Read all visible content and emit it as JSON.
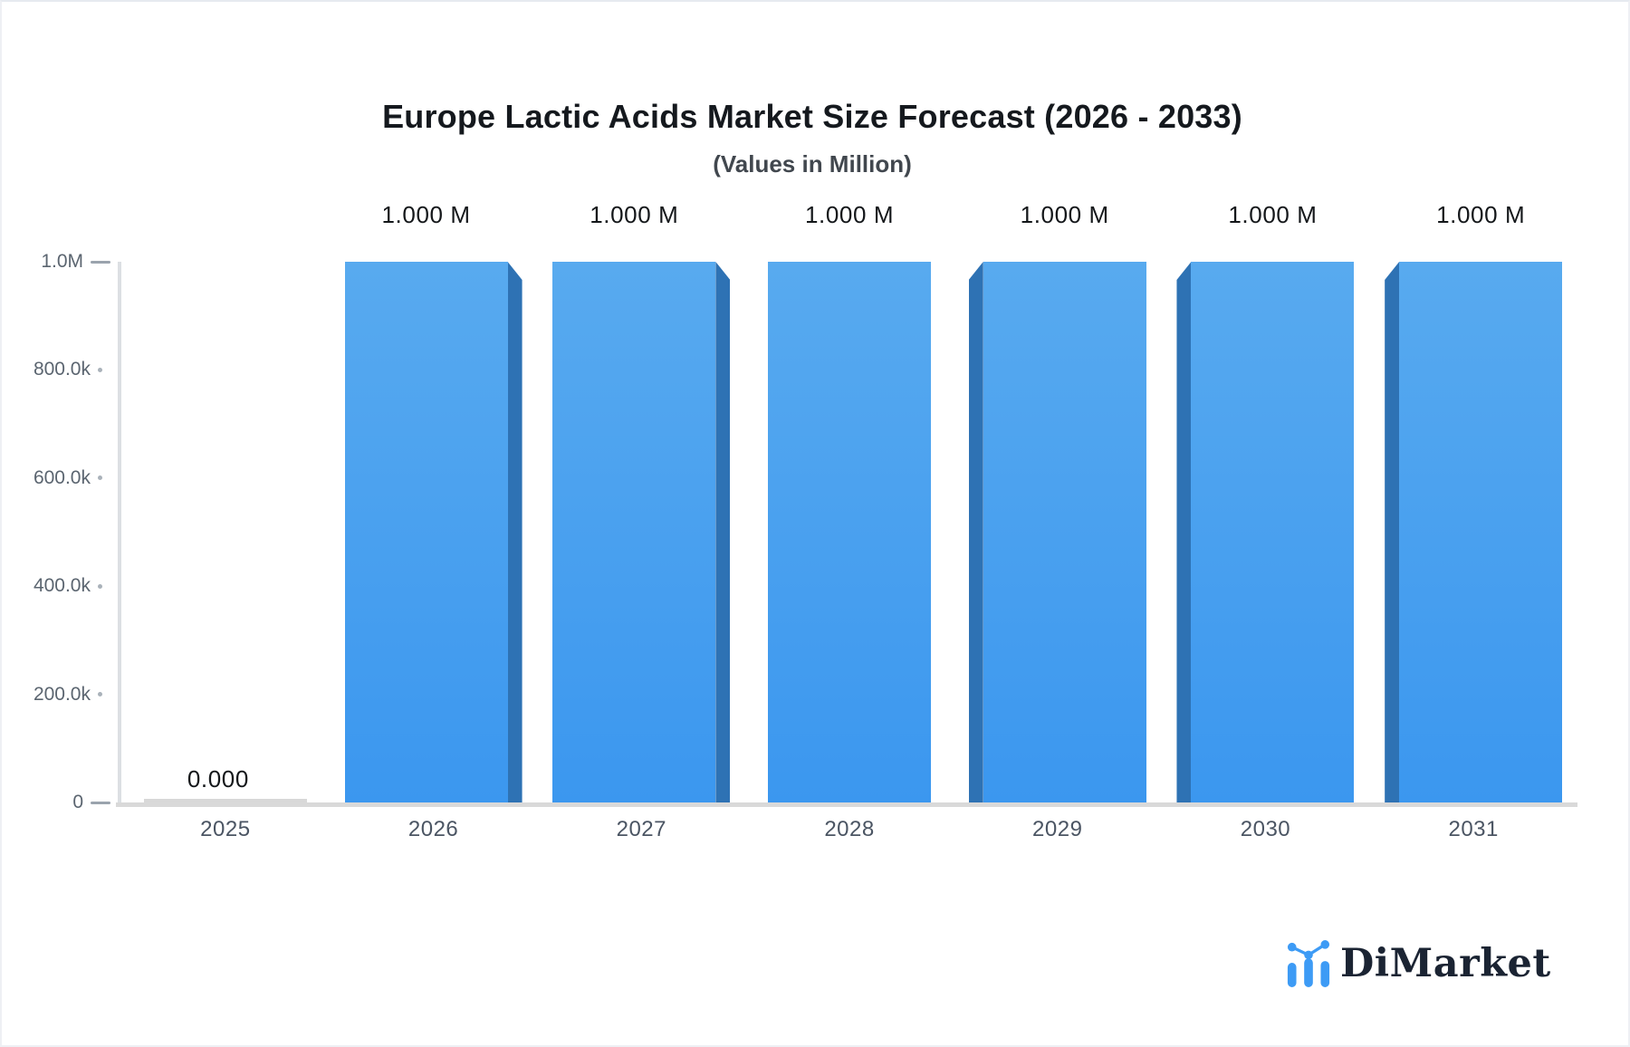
{
  "header": {
    "title": "Europe Lactic Acids Market Size Forecast (2026 - 2033)",
    "subtitle": "(Values in Million)"
  },
  "chart_data": {
    "type": "bar",
    "title": "Europe Lactic Acids Market Size Forecast (2026 - 2033)",
    "subtitle": "(Values in Million)",
    "categories": [
      "2025",
      "2026",
      "2027",
      "2028",
      "2029",
      "2030",
      "2031"
    ],
    "values": [
      0,
      1000000,
      1000000,
      1000000,
      1000000,
      1000000,
      1000000
    ],
    "data_labels": [
      "0.000",
      "1.000 M",
      "1.000 M",
      "1.000 M",
      "1.000 M",
      "1.000 M",
      "1.000 M"
    ],
    "xlabel": "",
    "ylabel": "",
    "ylim": [
      0,
      1000000
    ],
    "y_ticks": [
      {
        "label": "1.0M",
        "value": 1000000,
        "marker": "dash"
      },
      {
        "label": "800.0k",
        "value": 800000,
        "marker": "dot"
      },
      {
        "label": "600.0k",
        "value": 600000,
        "marker": "dot"
      },
      {
        "label": "400.0k",
        "value": 400000,
        "marker": "dot"
      },
      {
        "label": "200.0k",
        "value": 200000,
        "marker": "dot"
      },
      {
        "label": "0",
        "value": 0,
        "marker": "dash"
      }
    ],
    "grid": false,
    "legend": false,
    "bar_style": "3d-beveled, side faces angled toward chart center",
    "colors": {
      "bar_top": "#58aaef",
      "bar_bottom": "#3b97ef",
      "bar_side": "#2e72b4",
      "zero_bar": "#d8d8d8",
      "axis_line": "#dcdfe3",
      "baseline": "#d9d9d9",
      "tick_marker": "#9aa3ad",
      "tick_text": "#5b6570",
      "x_label_text": "#4b5563",
      "data_label_text": "#14171a",
      "title_text": "#15191e",
      "subtitle_text": "#41474e"
    }
  },
  "branding": {
    "logo_text": "DiMarket",
    "logo_text_color": "#1b2433",
    "logo_icon": "bar-line-chart-icon",
    "logo_icon_color": "#3d9bf5"
  }
}
